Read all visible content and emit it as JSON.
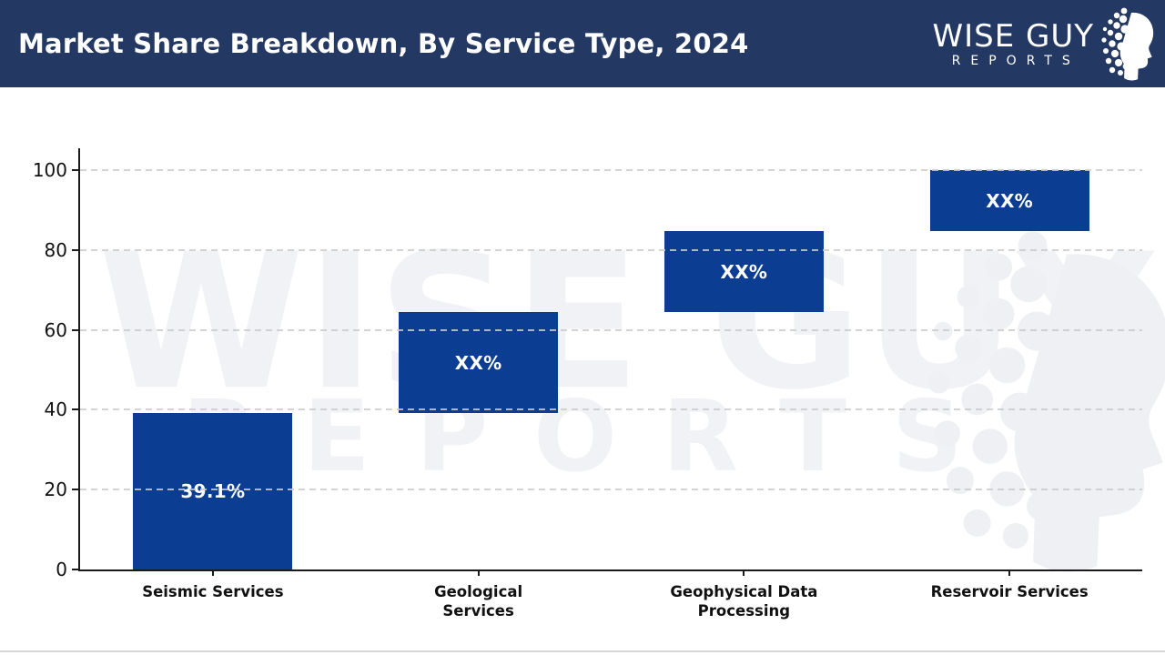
{
  "header": {
    "title": "Market Share Breakdown, By Service Type, 2024",
    "logo": {
      "line1": "WISE GUY",
      "line2": "REPORTS"
    }
  },
  "watermark": {
    "line1": "WISE GUY",
    "line2": "REPORTS"
  },
  "colors": {
    "header_bg": "#233862",
    "bar_blue": "#0b3e92",
    "bar_label": "#ffffff",
    "watermark_gray": "#f1f2f5",
    "axis": "#1a1a1a",
    "gridline": "#cbcbcb"
  },
  "chart_data": {
    "type": "bar",
    "subtype": "waterfall-segments",
    "title": "Market Share Breakdown, By Service Type, 2024",
    "categories": [
      "Seismic Services",
      "Geological\nServices",
      "Geophysical Data\nProcessing",
      "Reservoir Services"
    ],
    "segments": [
      {
        "category": "Seismic Services",
        "start": 0,
        "end": 39.1,
        "label": "39.1%"
      },
      {
        "category": "Geological Services",
        "start": 39.1,
        "end": 64.4,
        "label": "XX%"
      },
      {
        "category": "Geophysical Data Processing",
        "start": 64.4,
        "end": 84.7,
        "label": "XX%"
      },
      {
        "category": "Reservoir Services",
        "start": 84.7,
        "end": 100,
        "label": "XX%"
      }
    ],
    "y_ticks": [
      0,
      20,
      40,
      60,
      80,
      100
    ],
    "ylim": [
      0,
      100
    ],
    "xlabel": "",
    "ylabel": "",
    "grid": "horizontal-dashed",
    "legend": "none",
    "bar_color": "#0b3e92",
    "value_label_color": "#ffffff"
  }
}
